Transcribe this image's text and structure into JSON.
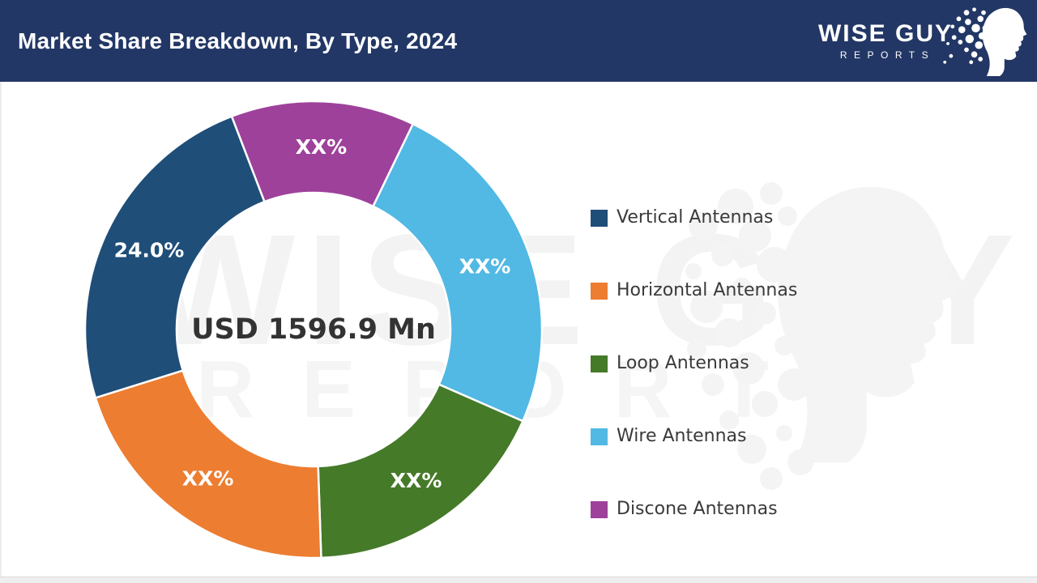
{
  "header": {
    "title": "Market Share Breakdown, By Type, 2024",
    "logo": {
      "name": "WISE GUY",
      "tagline": "REPORTS"
    }
  },
  "watermark": {
    "line1": "WISE GUY",
    "line2": "REPORTS"
  },
  "chart_data": {
    "type": "pie",
    "subtype": "donut",
    "title": "Market Share Breakdown, By Type, 2024",
    "center_label": "USD 1596.9 Mn",
    "start_angle_deg": -21,
    "inner_radius_ratio": 0.6,
    "legend_position": "right",
    "slices": [
      {
        "name": "Discone Antennas",
        "value_label": "XX%",
        "percent_estimate": 13.0,
        "color": "#9E419B"
      },
      {
        "name": "Wire Antennas",
        "value_label": "XX%",
        "percent_estimate": 24.4,
        "color": "#52B8E4"
      },
      {
        "name": "Loop Antennas",
        "value_label": "XX%",
        "percent_estimate": 17.9,
        "color": "#457A29"
      },
      {
        "name": "Horizontal Antennas",
        "value_label": "XX%",
        "percent_estimate": 20.7,
        "color": "#ED7D31"
      },
      {
        "name": "Vertical Antennas",
        "value_label": "24.0%",
        "percent_estimate": 24.0,
        "color": "#1F4E79"
      }
    ],
    "legend": [
      {
        "label": "Vertical Antennas",
        "color": "#1F4E79"
      },
      {
        "label": "Horizontal Antennas",
        "color": "#ED7D31"
      },
      {
        "label": "Loop Antennas",
        "color": "#457A29"
      },
      {
        "label": "Wire Antennas",
        "color": "#52B8E4"
      },
      {
        "label": "Discone Antennas",
        "color": "#9E419B"
      }
    ]
  },
  "colors": {
    "header_bg": "#223765",
    "center_text": "#333333",
    "legend_text": "#3a3a3a",
    "watermark": "#f3f3f3",
    "footer_bar": "#efefef"
  }
}
